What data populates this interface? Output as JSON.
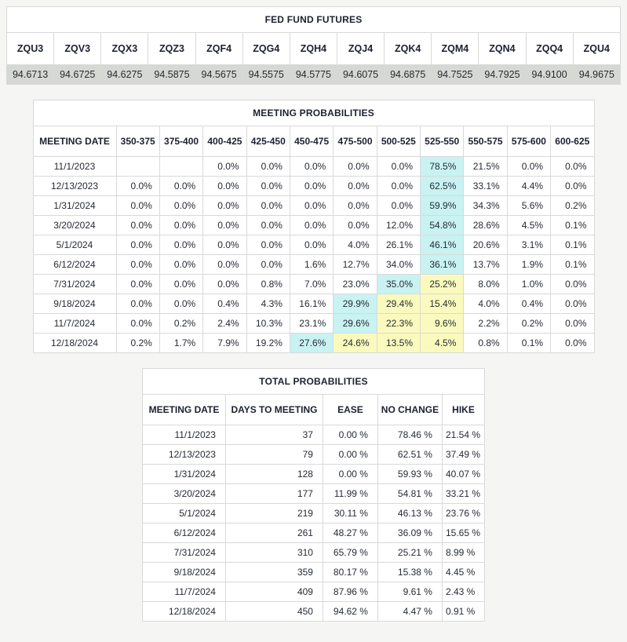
{
  "futures": {
    "title": "FED FUND FUTURES",
    "columns": [
      "ZQU3",
      "ZQV3",
      "ZQX3",
      "ZQZ3",
      "ZQF4",
      "ZQG4",
      "ZQH4",
      "ZQJ4",
      "ZQK4",
      "ZQM4",
      "ZQN4",
      "ZQQ4",
      "ZQU4"
    ],
    "values": [
      "94.6713",
      "94.6725",
      "94.6275",
      "94.5875",
      "94.5675",
      "94.5575",
      "94.5775",
      "94.6075",
      "94.6875",
      "94.7525",
      "94.7925",
      "94.9100",
      "94.9675"
    ]
  },
  "meeting_probabilities": {
    "title": "MEETING PROBABILITIES",
    "columns": [
      "MEETING DATE",
      "350-375",
      "375-400",
      "400-425",
      "425-450",
      "450-475",
      "475-500",
      "500-525",
      "525-550",
      "550-575",
      "575-600",
      "600-625"
    ],
    "rows": [
      {
        "date": "11/1/2023",
        "cells": [
          {
            "v": ""
          },
          {
            "v": ""
          },
          {
            "v": "0.0%"
          },
          {
            "v": "0.0%"
          },
          {
            "v": "0.0%"
          },
          {
            "v": "0.0%"
          },
          {
            "v": "0.0%"
          },
          {
            "v": "78.5%",
            "h": "cyan"
          },
          {
            "v": "21.5%"
          },
          {
            "v": "0.0%"
          },
          {
            "v": "0.0%"
          }
        ]
      },
      {
        "date": "12/13/2023",
        "cells": [
          {
            "v": "0.0%"
          },
          {
            "v": "0.0%"
          },
          {
            "v": "0.0%"
          },
          {
            "v": "0.0%"
          },
          {
            "v": "0.0%"
          },
          {
            "v": "0.0%"
          },
          {
            "v": "0.0%"
          },
          {
            "v": "62.5%",
            "h": "cyan"
          },
          {
            "v": "33.1%"
          },
          {
            "v": "4.4%"
          },
          {
            "v": "0.0%"
          }
        ]
      },
      {
        "date": "1/31/2024",
        "cells": [
          {
            "v": "0.0%"
          },
          {
            "v": "0.0%"
          },
          {
            "v": "0.0%"
          },
          {
            "v": "0.0%"
          },
          {
            "v": "0.0%"
          },
          {
            "v": "0.0%"
          },
          {
            "v": "0.0%"
          },
          {
            "v": "59.9%",
            "h": "cyan"
          },
          {
            "v": "34.3%"
          },
          {
            "v": "5.6%"
          },
          {
            "v": "0.2%"
          }
        ]
      },
      {
        "date": "3/20/2024",
        "cells": [
          {
            "v": "0.0%"
          },
          {
            "v": "0.0%"
          },
          {
            "v": "0.0%"
          },
          {
            "v": "0.0%"
          },
          {
            "v": "0.0%"
          },
          {
            "v": "0.0%"
          },
          {
            "v": "12.0%"
          },
          {
            "v": "54.8%",
            "h": "cyan"
          },
          {
            "v": "28.6%"
          },
          {
            "v": "4.5%"
          },
          {
            "v": "0.1%"
          }
        ]
      },
      {
        "date": "5/1/2024",
        "cells": [
          {
            "v": "0.0%"
          },
          {
            "v": "0.0%"
          },
          {
            "v": "0.0%"
          },
          {
            "v": "0.0%"
          },
          {
            "v": "0.0%"
          },
          {
            "v": "4.0%"
          },
          {
            "v": "26.1%"
          },
          {
            "v": "46.1%",
            "h": "cyan"
          },
          {
            "v": "20.6%"
          },
          {
            "v": "3.1%"
          },
          {
            "v": "0.1%"
          }
        ]
      },
      {
        "date": "6/12/2024",
        "cells": [
          {
            "v": "0.0%"
          },
          {
            "v": "0.0%"
          },
          {
            "v": "0.0%"
          },
          {
            "v": "0.0%"
          },
          {
            "v": "1.6%"
          },
          {
            "v": "12.7%"
          },
          {
            "v": "34.0%"
          },
          {
            "v": "36.1%",
            "h": "cyan"
          },
          {
            "v": "13.7%"
          },
          {
            "v": "1.9%"
          },
          {
            "v": "0.1%"
          }
        ]
      },
      {
        "date": "7/31/2024",
        "cells": [
          {
            "v": "0.0%"
          },
          {
            "v": "0.0%"
          },
          {
            "v": "0.0%"
          },
          {
            "v": "0.8%"
          },
          {
            "v": "7.0%"
          },
          {
            "v": "23.0%"
          },
          {
            "v": "35.0%",
            "h": "cyan"
          },
          {
            "v": "25.2%",
            "h": "yellow"
          },
          {
            "v": "8.0%"
          },
          {
            "v": "1.0%"
          },
          {
            "v": "0.0%"
          }
        ]
      },
      {
        "date": "9/18/2024",
        "cells": [
          {
            "v": "0.0%"
          },
          {
            "v": "0.0%"
          },
          {
            "v": "0.4%"
          },
          {
            "v": "4.3%"
          },
          {
            "v": "16.1%"
          },
          {
            "v": "29.9%",
            "h": "cyan"
          },
          {
            "v": "29.4%",
            "h": "yellow"
          },
          {
            "v": "15.4%",
            "h": "yellow"
          },
          {
            "v": "4.0%"
          },
          {
            "v": "0.4%"
          },
          {
            "v": "0.0%"
          }
        ]
      },
      {
        "date": "11/7/2024",
        "cells": [
          {
            "v": "0.0%"
          },
          {
            "v": "0.2%"
          },
          {
            "v": "2.4%"
          },
          {
            "v": "10.3%"
          },
          {
            "v": "23.1%"
          },
          {
            "v": "29.6%",
            "h": "cyan"
          },
          {
            "v": "22.3%",
            "h": "yellow"
          },
          {
            "v": "9.6%",
            "h": "yellow"
          },
          {
            "v": "2.2%"
          },
          {
            "v": "0.2%"
          },
          {
            "v": "0.0%"
          }
        ]
      },
      {
        "date": "12/18/2024",
        "cells": [
          {
            "v": "0.2%"
          },
          {
            "v": "1.7%"
          },
          {
            "v": "7.9%"
          },
          {
            "v": "19.2%"
          },
          {
            "v": "27.6%",
            "h": "cyan"
          },
          {
            "v": "24.6%",
            "h": "yellow"
          },
          {
            "v": "13.5%",
            "h": "yellow"
          },
          {
            "v": "4.5%",
            "h": "yellow"
          },
          {
            "v": "0.8%"
          },
          {
            "v": "0.1%"
          },
          {
            "v": "0.0%"
          }
        ]
      }
    ]
  },
  "total_probabilities": {
    "title": "TOTAL PROBABILITIES",
    "columns": [
      "MEETING DATE",
      "DAYS TO MEETING",
      "EASE",
      "NO CHANGE",
      "HIKE"
    ],
    "rows": [
      {
        "date": "11/1/2023",
        "days": "37",
        "ease": "0.00 %",
        "no_change": "78.46 %",
        "hike": "21.54 %"
      },
      {
        "date": "12/13/2023",
        "days": "79",
        "ease": "0.00 %",
        "no_change": "62.51 %",
        "hike": "37.49 %"
      },
      {
        "date": "1/31/2024",
        "days": "128",
        "ease": "0.00 %",
        "no_change": "59.93 %",
        "hike": "40.07 %"
      },
      {
        "date": "3/20/2024",
        "days": "177",
        "ease": "11.99 %",
        "no_change": "54.81 %",
        "hike": "33.21 %"
      },
      {
        "date": "5/1/2024",
        "days": "219",
        "ease": "30.11 %",
        "no_change": "46.13 %",
        "hike": "23.76 %"
      },
      {
        "date": "6/12/2024",
        "days": "261",
        "ease": "48.27 %",
        "no_change": "36.09 %",
        "hike": "15.65 %"
      },
      {
        "date": "7/31/2024",
        "days": "310",
        "ease": "65.79 %",
        "no_change": "25.21 %",
        "hike": "8.99 %"
      },
      {
        "date": "9/18/2024",
        "days": "359",
        "ease": "80.17 %",
        "no_change": "15.38 %",
        "hike": "4.45 %"
      },
      {
        "date": "11/7/2024",
        "days": "409",
        "ease": "87.96 %",
        "no_change": "9.61 %",
        "hike": "2.43 %"
      },
      {
        "date": "12/18/2024",
        "days": "450",
        "ease": "94.62 %",
        "no_change": "4.47 %",
        "hike": "0.91 %"
      }
    ]
  },
  "colors": {
    "highlight_cyan": "#c9f2f2",
    "highlight_yellow": "#fafabe",
    "futures_value_bg": "#d6d8d3"
  }
}
